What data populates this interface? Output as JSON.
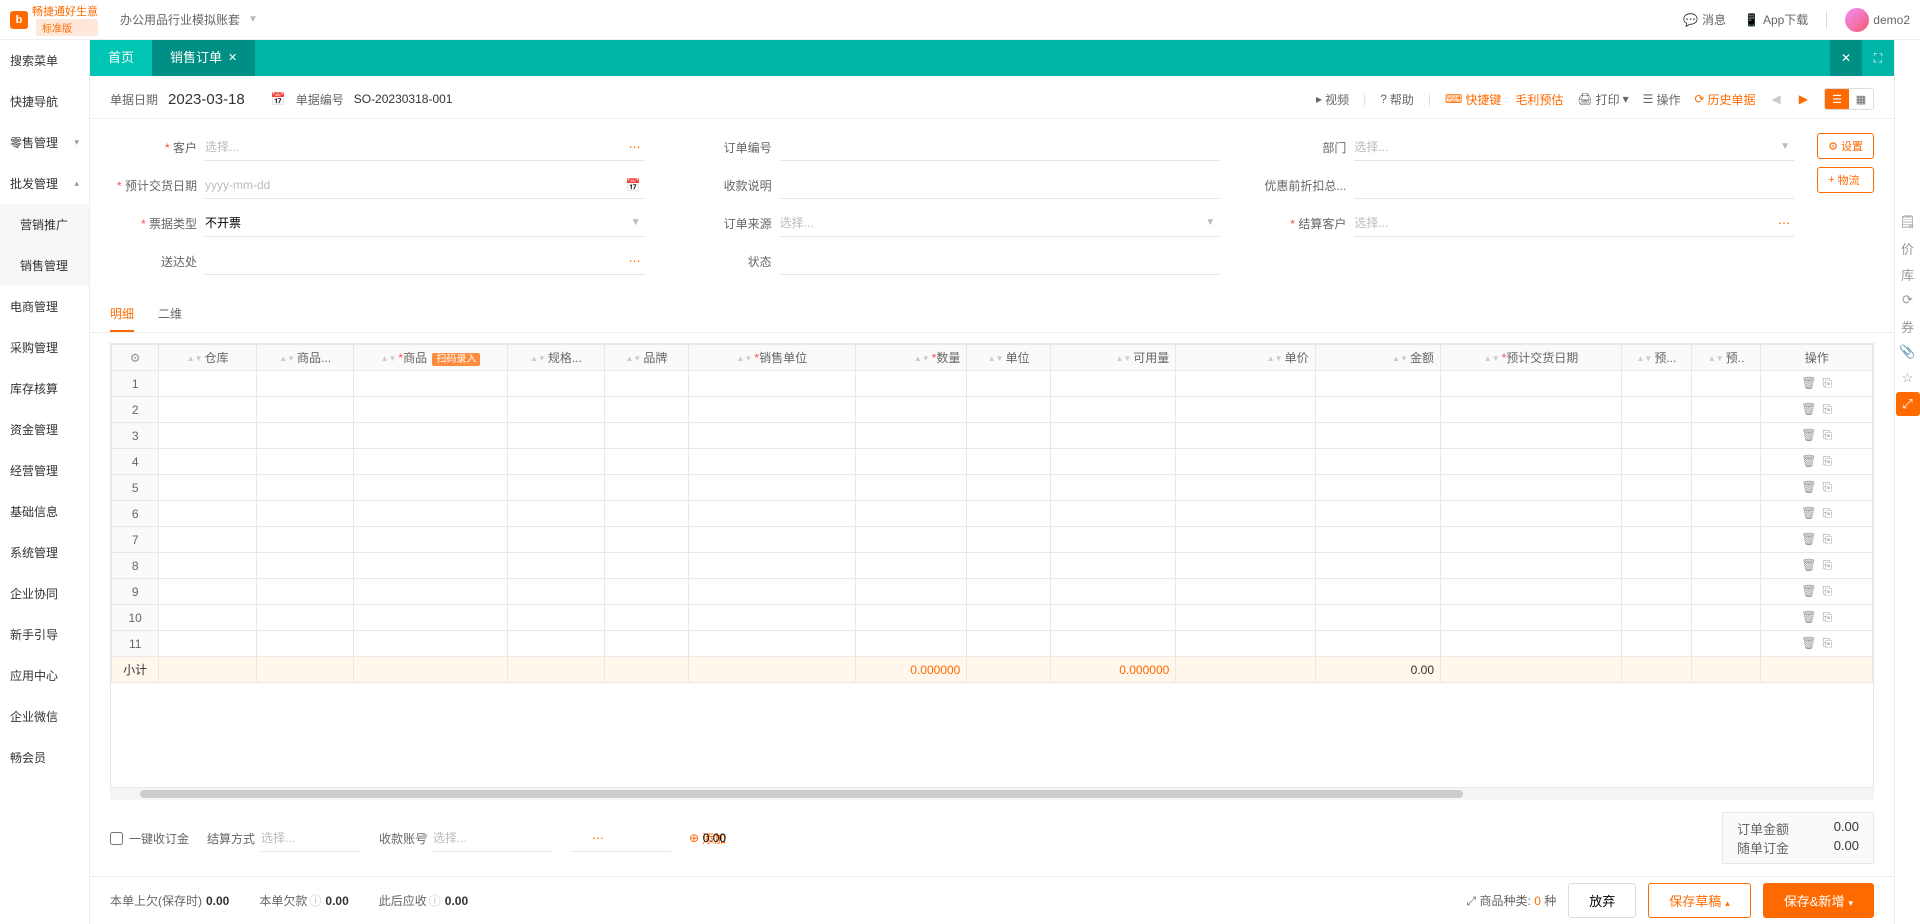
{
  "brand": {
    "logo_char": "b",
    "name": "畅捷通好生意",
    "edition": "标准版"
  },
  "account_selector": "办公用品行业模拟账套",
  "topbar": {
    "message": "消息",
    "app_download": "App下载",
    "user": "demo2"
  },
  "sidebar": {
    "items": [
      {
        "label": "搜索菜单",
        "caret": ""
      },
      {
        "label": "快捷导航",
        "caret": ""
      },
      {
        "label": "零售管理",
        "caret": "▾"
      },
      {
        "label": "批发管理",
        "caret": "▴"
      },
      {
        "label": "营销推广",
        "sub": true
      },
      {
        "label": "销售管理",
        "sub": true
      },
      {
        "label": "电商管理",
        "caret": ""
      },
      {
        "label": "采购管理",
        "caret": ""
      },
      {
        "label": "库存核算",
        "caret": ""
      },
      {
        "label": "资金管理",
        "caret": ""
      },
      {
        "label": "经营管理",
        "caret": ""
      },
      {
        "label": "基础信息",
        "caret": ""
      },
      {
        "label": "系统管理",
        "caret": ""
      },
      {
        "label": "企业协同",
        "caret": ""
      },
      {
        "label": "新手引导",
        "caret": ""
      },
      {
        "label": "应用中心",
        "caret": ""
      },
      {
        "label": "企业微信",
        "caret": ""
      },
      {
        "label": "畅会员",
        "caret": ""
      }
    ]
  },
  "tabs": {
    "home": "首页",
    "active": "销售订单"
  },
  "doc": {
    "date_label": "单据日期",
    "date_value": "2023-03-18",
    "no_label": "单据编号",
    "no_value": "SO-20230318-001",
    "actions": {
      "video": "视频",
      "help": "帮助",
      "shortcut": "快捷键",
      "gross": "毛利预估",
      "print": "打印",
      "operate": "操作",
      "history": "历史单据"
    }
  },
  "form": {
    "customer_label": "客户",
    "customer_placeholder": "选择...",
    "order_no_label": "订单编号",
    "dept_label": "部门",
    "dept_placeholder": "选择...",
    "delivery_date_label": "预计交货日期",
    "delivery_date_placeholder": "yyyy-mm-dd",
    "receipt_note_label": "收款说明",
    "pre_discount_label": "优惠前折扣总...",
    "invoice_type_label": "票据类型",
    "invoice_type_value": "不开票",
    "order_source_label": "订单来源",
    "order_source_placeholder": "选择...",
    "settle_customer_label": "结算客户",
    "settle_customer_placeholder": "选择...",
    "delivery_addr_label": "送达处",
    "status_label": "状态",
    "settings_btn": "设置",
    "logistics_btn": "物流"
  },
  "detail_tabs": {
    "detail": "明细",
    "two_d": "二维"
  },
  "table": {
    "columns": {
      "warehouse": "仓库",
      "goods_no": "商品...",
      "goods": "商品",
      "scan_badge": "扫码录入",
      "spec": "规格...",
      "brand": "品牌",
      "sale_unit": "销售单位",
      "qty": "数量",
      "unit": "单位",
      "available": "可用量",
      "price": "单价",
      "amount": "金额",
      "delivery_date": "预计交货日期",
      "pre1": "预...",
      "pre2": "预..",
      "action": "操作"
    },
    "row_count": 11,
    "subtotal": {
      "label": "小计",
      "qty": "0.000000",
      "available": "0.000000",
      "amount": "0.00"
    }
  },
  "payment": {
    "deposit_checkbox": "一键收订金",
    "settle_method_label": "结算方式",
    "settle_method_placeholder": "选择...",
    "account_label": "收款账号",
    "account_placeholder": "选择...",
    "amount_value": "0.00",
    "add": "添加",
    "totals": {
      "order_amount_label": "订单金额",
      "order_amount_value": "0.00",
      "deposit_label": "随单订金",
      "deposit_value": "0.00"
    }
  },
  "footer": {
    "prev_owe_label": "本单上欠(保存时)",
    "prev_owe": "0.00",
    "this_owe_label": "本单欠款",
    "this_owe": "0.00",
    "after_owe_label": "此后应收",
    "after_owe": "0.00",
    "prod_kind_label": "商品种类:",
    "prod_kind_count": "0",
    "prod_kind_unit": "种",
    "discard": "放弃",
    "save_draft": "保存草稿",
    "save_new": "保存&新增"
  },
  "colors": {
    "teal": "#00b4a6",
    "teal_dark": "#008f84",
    "orange": "#ff6a00",
    "border": "#e8e8e8",
    "text_muted": "#666"
  }
}
